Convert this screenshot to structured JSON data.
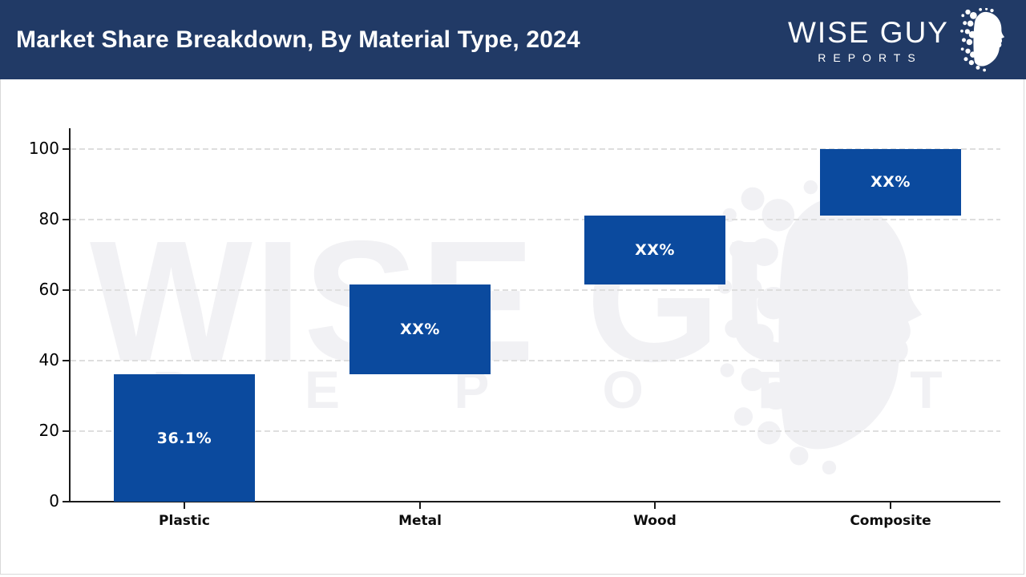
{
  "header": {
    "title": "Market Share Breakdown, By Material Type, 2024",
    "logo": {
      "line1": "WISE GUY",
      "line2": "REPORTS"
    }
  },
  "watermark": {
    "line1": "WISE GU",
    "line2": "R E P O R T S"
  },
  "chart_data": {
    "type": "bar",
    "subtype": "waterfall-floating-bars",
    "title": "Market Share Breakdown, By Material Type, 2024",
    "categories": [
      "Plastic",
      "Metal",
      "Wood",
      "Composite"
    ],
    "segments": [
      {
        "category": "Plastic",
        "start": 0,
        "end": 36.1,
        "label": "36.1%"
      },
      {
        "category": "Metal",
        "start": 36.1,
        "end": 61.6,
        "label": "XX%"
      },
      {
        "category": "Wood",
        "start": 61.6,
        "end": 81.2,
        "label": "XX%"
      },
      {
        "category": "Composite",
        "start": 81.2,
        "end": 100,
        "label": "XX%"
      }
    ],
    "xlabel": "",
    "ylabel": "",
    "ylim": [
      0,
      105
    ],
    "yticks": [
      0,
      20,
      40,
      60,
      80,
      100
    ],
    "grid": "horizontal-dashed",
    "legend": "none",
    "colors": {
      "bar": "#0B4A9E",
      "bar_label": "#FFFFFF",
      "grid": "#DEDEDE",
      "axis": "#1A1A1A",
      "header_bg": "#213A66",
      "watermark": "#F1F1F4"
    }
  }
}
